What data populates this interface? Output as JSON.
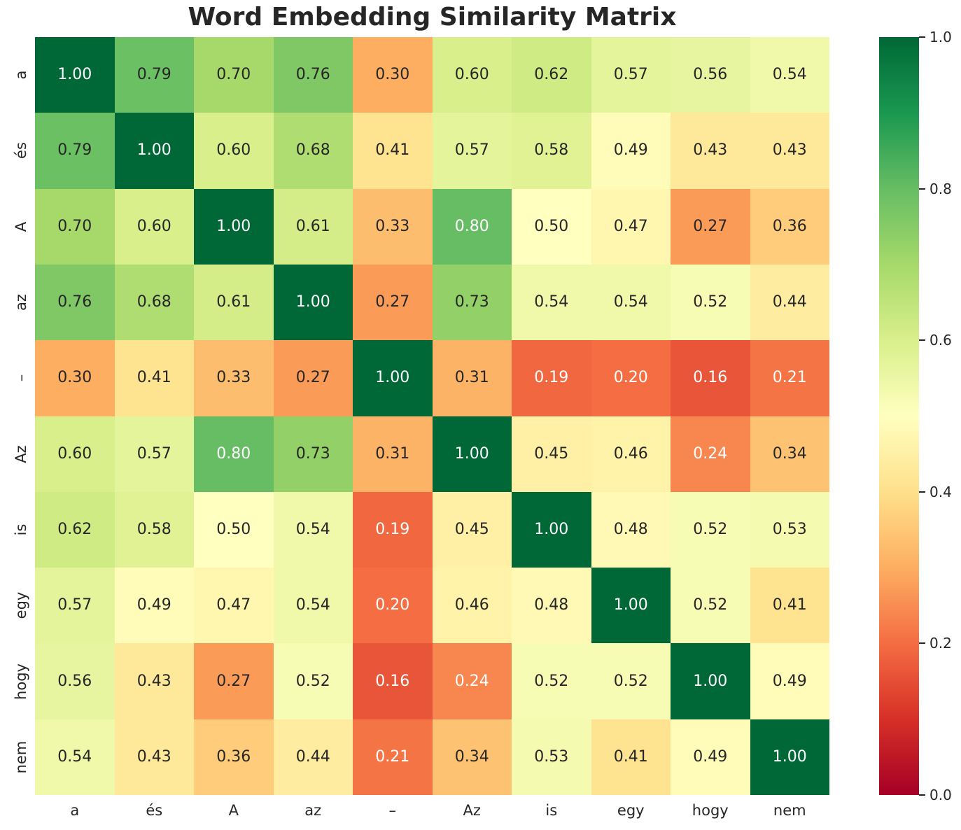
{
  "title": "Word Embedding Similarity Matrix",
  "chart_data": {
    "type": "heatmap",
    "title": "Word Embedding Similarity Matrix",
    "x_labels": [
      "a",
      "és",
      "A",
      "az",
      "–",
      "Az",
      "is",
      "egy",
      "hogy",
      "nem"
    ],
    "y_labels": [
      "a",
      "és",
      "A",
      "az",
      "–",
      "Az",
      "is",
      "egy",
      "hogy",
      "nem"
    ],
    "matrix": [
      [
        1.0,
        0.79,
        0.7,
        0.76,
        0.3,
        0.6,
        0.62,
        0.57,
        0.56,
        0.54
      ],
      [
        0.79,
        1.0,
        0.6,
        0.68,
        0.41,
        0.57,
        0.58,
        0.49,
        0.43,
        0.43
      ],
      [
        0.7,
        0.6,
        1.0,
        0.61,
        0.33,
        0.8,
        0.5,
        0.47,
        0.27,
        0.36
      ],
      [
        0.76,
        0.68,
        0.61,
        1.0,
        0.27,
        0.73,
        0.54,
        0.54,
        0.52,
        0.44
      ],
      [
        0.3,
        0.41,
        0.33,
        0.27,
        1.0,
        0.31,
        0.19,
        0.2,
        0.16,
        0.21
      ],
      [
        0.6,
        0.57,
        0.8,
        0.73,
        0.31,
        1.0,
        0.45,
        0.46,
        0.24,
        0.34
      ],
      [
        0.62,
        0.58,
        0.5,
        0.54,
        0.19,
        0.45,
        1.0,
        0.48,
        0.52,
        0.53
      ],
      [
        0.57,
        0.49,
        0.47,
        0.54,
        0.2,
        0.46,
        0.48,
        1.0,
        0.52,
        0.41
      ],
      [
        0.56,
        0.43,
        0.27,
        0.52,
        0.16,
        0.24,
        0.52,
        0.52,
        1.0,
        0.49
      ],
      [
        0.54,
        0.43,
        0.36,
        0.44,
        0.21,
        0.34,
        0.53,
        0.41,
        0.49,
        1.0
      ]
    ],
    "vmin": 0.0,
    "vmax": 1.0,
    "value_decimals": 2,
    "annotations_on": true,
    "grid": false,
    "colormap": "RdYlGn",
    "colormap_anchors": [
      "#a50026",
      "#d73027",
      "#f46d43",
      "#fdae61",
      "#fee08b",
      "#ffffbf",
      "#d9ef8b",
      "#a6d96a",
      "#66bd63",
      "#1a9850",
      "#006837"
    ],
    "colorbar": {
      "position": "right",
      "tick_labels": [
        "1.0",
        "0.8",
        "0.6",
        "0.4",
        "0.2",
        "0.0"
      ],
      "tick_values": [
        1.0,
        0.8,
        0.6,
        0.4,
        0.2,
        0.0
      ]
    }
  },
  "colors": {
    "background": "#ffffff",
    "title_text": "#262626",
    "tick_label_text": "#262626",
    "annotation_dark": "#262626",
    "annotation_light": "#ffffff"
  }
}
